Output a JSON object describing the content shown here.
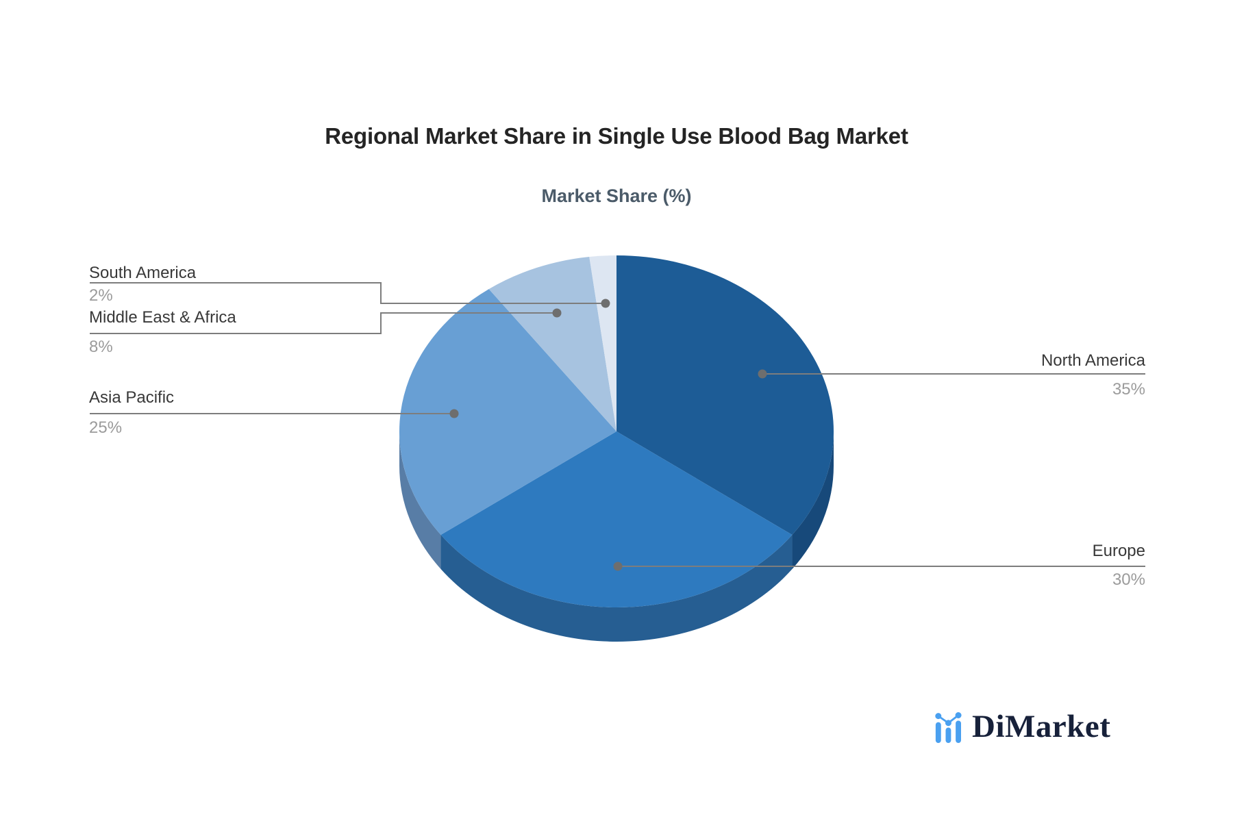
{
  "chart_data": {
    "type": "pie",
    "title": "Regional Market Share in Single Use Blood Bag Market",
    "subtitle": "Market Share (%)",
    "unit": "%",
    "effect": "3d",
    "start_angle_deg": 0,
    "clockwise": true,
    "legend_position": "callouts",
    "slices": [
      {
        "label": "North America",
        "value": 35,
        "value_label": "35%",
        "color": "#1d5c96",
        "side_color": "#17497a"
      },
      {
        "label": "Europe",
        "value": 30,
        "value_label": "30%",
        "color": "#2e7abf",
        "side_color": "#265e92"
      },
      {
        "label": "Asia Pacific",
        "value": 25,
        "value_label": "25%",
        "color": "#689fd4",
        "side_color": "#587da6"
      },
      {
        "label": "Middle East & Africa",
        "value": 8,
        "value_label": "8%",
        "color": "#a7c3e0",
        "side_color": "#8aa6c4"
      },
      {
        "label": "South America",
        "value": 2,
        "value_label": "2%",
        "color": "#dde6f2",
        "side_color": "#b9c7d9"
      }
    ],
    "callout_line_color": "#7d7d7d",
    "callout_dot_color": "#6e6e6e",
    "label_color": "#383838",
    "value_label_color": "#9b9b9b"
  },
  "branding": {
    "logo_text": "DiMarket",
    "logo_icon": "bar-chart-with-trend-dots-icon",
    "logo_icon_color": "#4aa0f0",
    "logo_text_color": "#17213a"
  }
}
